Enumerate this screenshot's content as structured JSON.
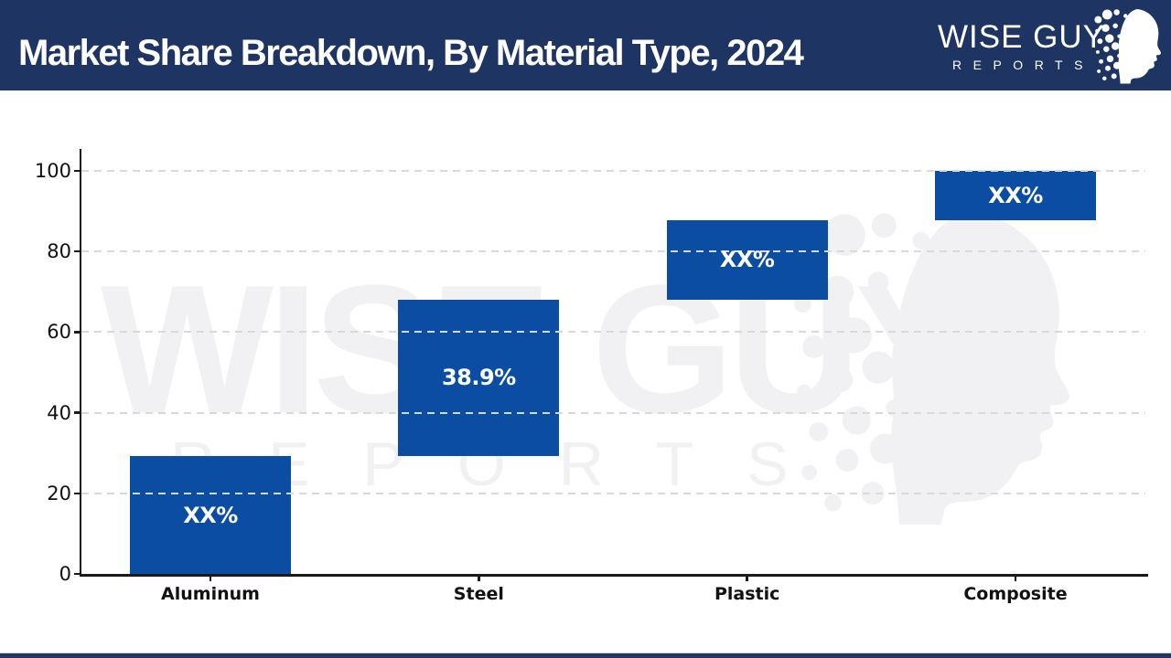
{
  "header": {
    "title": "Market Share Breakdown, By Material Type, 2024",
    "logo": {
      "line1": "WISE GUY",
      "line2": "REPORTS"
    }
  },
  "watermark": {
    "line1": "WISE GUY",
    "line2": "REPORTS"
  },
  "chart_data": {
    "type": "bar",
    "subtype": "floating-segment-waterfall",
    "title": "Market Share Breakdown, By Material Type, 2024",
    "categories": [
      "Aluminum",
      "Steel",
      "Plastic",
      "Composite"
    ],
    "segments": [
      {
        "category": "Aluminum",
        "start": 0,
        "end": 29.2,
        "estimated_value": 29.2,
        "display_label": "XX%"
      },
      {
        "category": "Steel",
        "start": 29.2,
        "end": 68.1,
        "estimated_value": 38.9,
        "display_label": "38.9%"
      },
      {
        "category": "Plastic",
        "start": 68.1,
        "end": 87.7,
        "estimated_value": 19.6,
        "display_label": "XX%"
      },
      {
        "category": "Composite",
        "start": 87.7,
        "end": 100,
        "estimated_value": 12.3,
        "display_label": "XX%"
      }
    ],
    "yticks": [
      0,
      20,
      40,
      60,
      80,
      100
    ],
    "ylim": [
      0,
      105.5
    ],
    "xlabel": "",
    "ylabel": "",
    "grid": "horizontal dashed, drawn above bars",
    "legend": "none",
    "bar_color": "#0b4da2",
    "bar_label_color": "#ffffff"
  },
  "colors": {
    "header_navy": "#1e3563",
    "bar_blue": "#0b4da2",
    "grid_gray": "#d9d9d9",
    "axis_black": "#1a1a1a",
    "watermark_gray": "#f1f1f3",
    "background": "#ffffff"
  }
}
